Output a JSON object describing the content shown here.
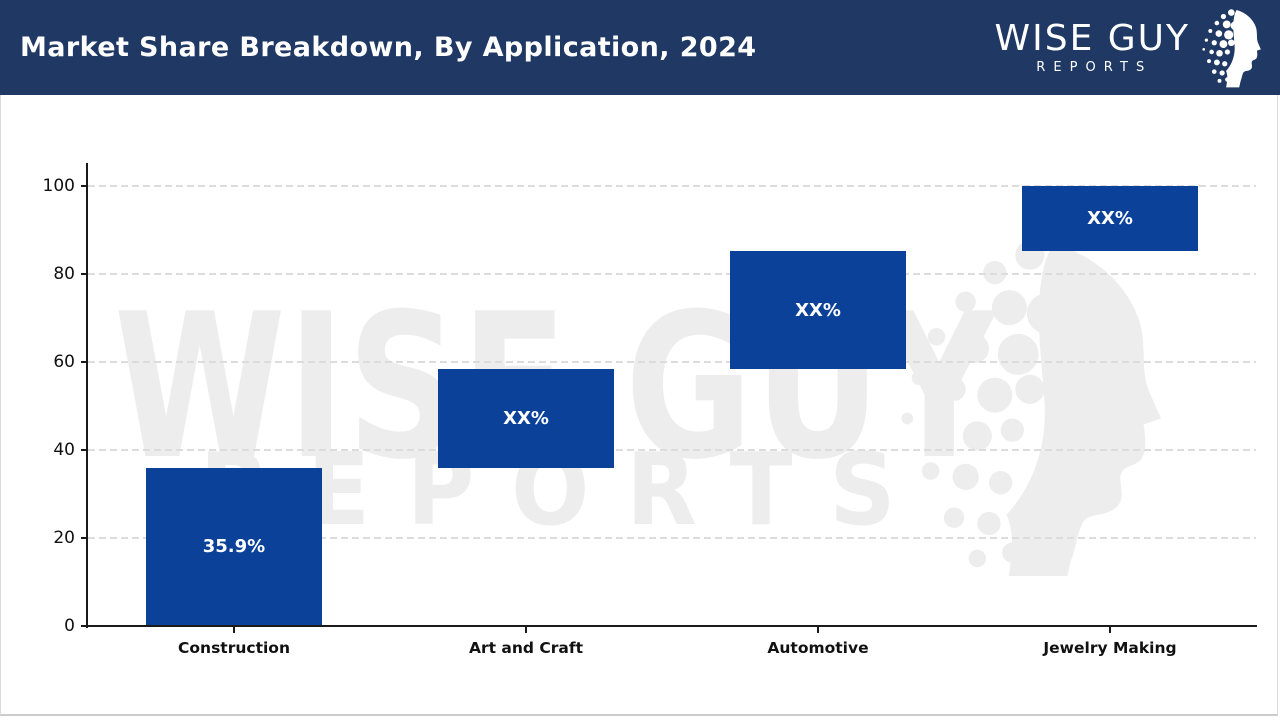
{
  "header": {
    "title": "Market Share Breakdown, By Application, 2024",
    "bg_color": "#1f3864",
    "logo": {
      "line1": "WISE GUY",
      "line2": "REPORTS"
    }
  },
  "watermark": {
    "line1": "WISE GUY",
    "line2": "REPORTS"
  },
  "chart_data": {
    "type": "bar",
    "subtype": "waterfall",
    "title": "Market Share Breakdown, By Application, 2024",
    "categories": [
      "Construction",
      "Art and Craft",
      "Automotive",
      "Jewelry Making"
    ],
    "segments": [
      {
        "category": "Construction",
        "start": 0,
        "end": 35.9,
        "label": "35.9%"
      },
      {
        "category": "Art and Craft",
        "start": 35.9,
        "end": 58.3,
        "label": "XX%"
      },
      {
        "category": "Automotive",
        "start": 58.3,
        "end": 85.2,
        "label": "XX%"
      },
      {
        "category": "Jewelry Making",
        "start": 85.2,
        "end": 100,
        "label": "XX%"
      }
    ],
    "values_implied": [
      35.9,
      22.4,
      26.9,
      14.8
    ],
    "xlabel": "",
    "ylabel": "",
    "yticks": [
      0,
      20,
      40,
      60,
      80,
      100
    ],
    "ylim": [
      0,
      105
    ],
    "grid": "horizontal-dashed",
    "legend": "none",
    "bar_color": "#0b4199",
    "bar_label_color": "#ffffff",
    "grid_color": "#dcdcdc",
    "axis_color": "#1a1a1a",
    "tick_label_color": "#111111"
  }
}
